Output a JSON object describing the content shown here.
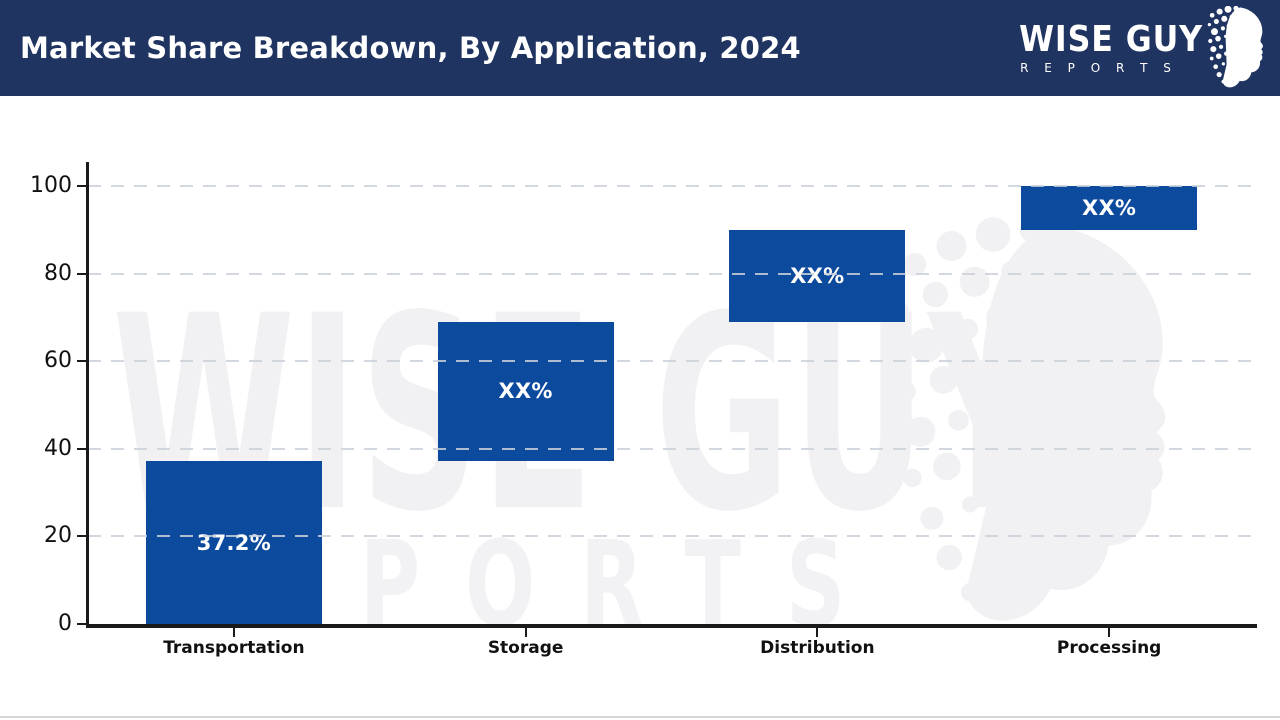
{
  "header": {
    "title": "Market Share Breakdown, By Application, 2024",
    "logo": {
      "line1": "WISE GUY",
      "line2": "R E P O R T S"
    }
  },
  "watermark": {
    "line1": "WISE GUY",
    "line2": "REPORTS"
  },
  "chart_data": {
    "type": "bar",
    "subtype": "floating-waterfall",
    "title": "Market Share Breakdown, By Application, 2024",
    "categories": [
      "Transportation",
      "Storage",
      "Distribution",
      "Processing"
    ],
    "segments": [
      {
        "category": "Transportation",
        "start": 0,
        "end": 37.2,
        "label": "37.2%"
      },
      {
        "category": "Storage",
        "start": 37.2,
        "end": 69,
        "label": "XX%"
      },
      {
        "category": "Distribution",
        "start": 69,
        "end": 90,
        "label": "XX%"
      },
      {
        "category": "Processing",
        "start": 90,
        "end": 100,
        "label": "XX%"
      }
    ],
    "ylim": [
      0,
      100
    ],
    "yticks": [
      0,
      20,
      40,
      60,
      80,
      100
    ],
    "xlabel": "",
    "ylabel": "",
    "grid": "horizontal-dashed",
    "legend": "none",
    "bar_color": "#0c4a9e",
    "bar_label_color": "#ffffff"
  },
  "colors": {
    "header_bg": "#1f3461",
    "bar": "#0c4a9e",
    "axis": "#1a1a1a",
    "grid": "#cbd0d9",
    "watermark": "#f1f1f4",
    "page_bg": "#ffffff"
  }
}
